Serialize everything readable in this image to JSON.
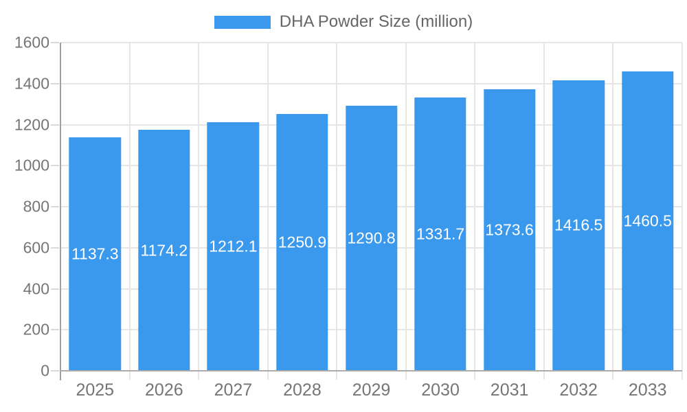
{
  "legend": {
    "label": "DHA Powder Size (million)"
  },
  "colors": {
    "bar": "#3A99EC",
    "bar_value_label": "#FFFFFF",
    "gridline": "#E6E6E6",
    "axis_line": "#A6A6A6",
    "axis_text": "#757575",
    "legend_text": "#666666",
    "background": "#FFFFFF"
  },
  "chart_data": {
    "type": "bar",
    "title": "",
    "xlabel": "",
    "ylabel": "",
    "categories": [
      "2025",
      "2026",
      "2027",
      "2028",
      "2029",
      "2030",
      "2031",
      "2032",
      "2033"
    ],
    "series": [
      {
        "name": "DHA Powder Size (million)",
        "values": [
          1137.3,
          1174.2,
          1212.1,
          1250.9,
          1290.8,
          1331.7,
          1373.6,
          1416.5,
          1460.5
        ]
      }
    ],
    "value_labels_shown": true,
    "ylim": [
      0,
      1600
    ],
    "yticks": [
      0,
      200,
      400,
      600,
      800,
      1000,
      1200,
      1400,
      1600
    ],
    "grid": true,
    "legend_position": "top"
  }
}
